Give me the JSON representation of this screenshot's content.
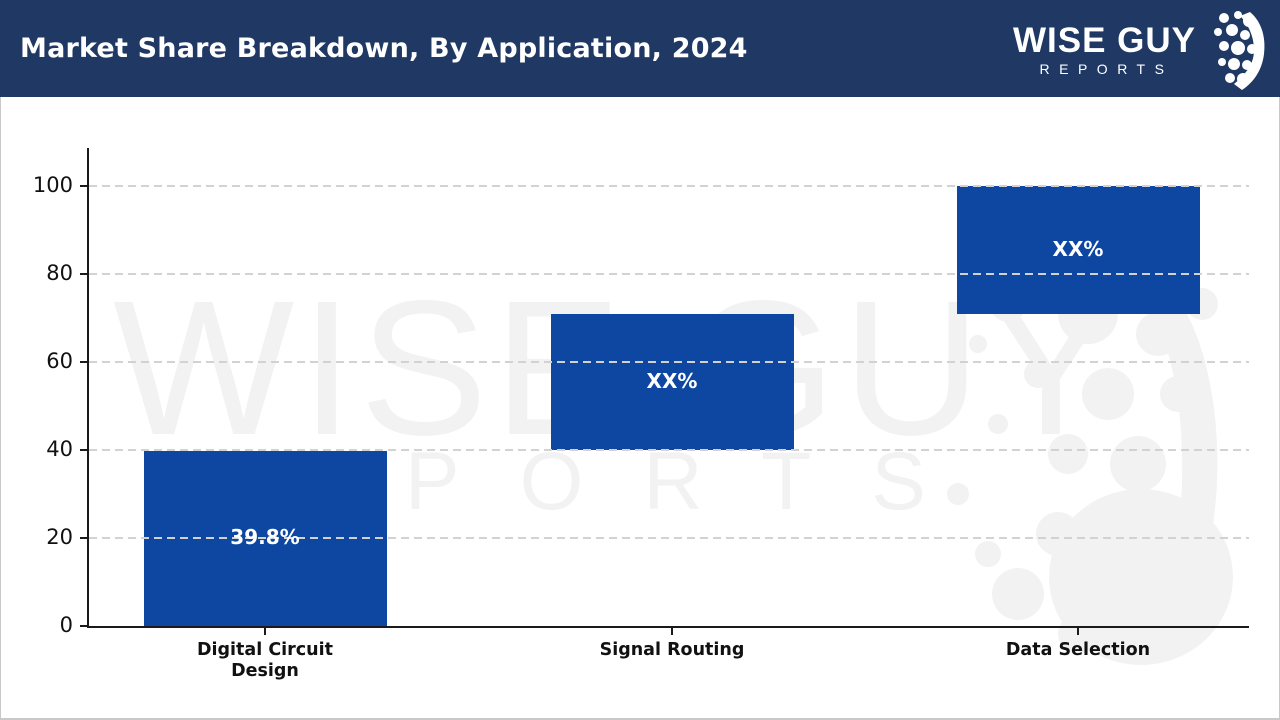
{
  "header": {
    "title": "Market Share Breakdown, By Application, 2024",
    "logo": {
      "line1": "WISE GUY",
      "line2": "REPORTS"
    },
    "background_color": "#203864"
  },
  "watermark": {
    "line1": "WISE GUY",
    "line2": "REPORTS"
  },
  "chart_data": {
    "type": "bar",
    "subtype": "floating-segment-waterfall",
    "title": "Market Share Breakdown, By Application, 2024",
    "categories": [
      "Digital Circuit Design",
      "Signal Routing",
      "Data Selection"
    ],
    "bars": [
      {
        "category": "Digital Circuit Design",
        "start": 0,
        "end": 39.8,
        "label": "39.8%"
      },
      {
        "category": "Signal Routing",
        "start": 40,
        "end": 71,
        "label": "XX%"
      },
      {
        "category": "Data Selection",
        "start": 71,
        "end": 100,
        "label": "XX%"
      }
    ],
    "xlabel": "",
    "ylabel": "",
    "ylim": [
      0,
      108
    ],
    "y_ticks": [
      0,
      20,
      40,
      60,
      80,
      100
    ],
    "grid": "horizontal-dashed",
    "legend": "none",
    "bar_color": "#0d47a1",
    "bar_label_color": "#ffffff",
    "axis_color": "#1a1a1a",
    "gridline_color": "#d2d2d2",
    "tick_label_color": "#111111"
  }
}
